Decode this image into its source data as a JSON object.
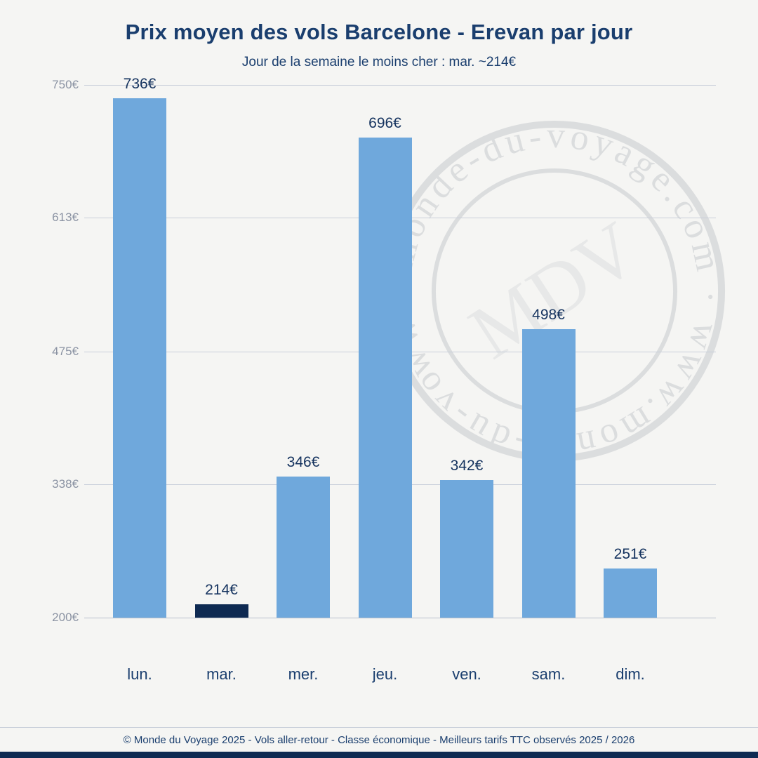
{
  "header": {
    "title": "Prix moyen des vols Barcelone - Erevan par jour",
    "subtitle": "Jour de la semaine le moins cher : mar. ~214€"
  },
  "watermark": {
    "ring_text": "www.monde-du-voyage.com · www.monde-du-voyage.com ·",
    "center_text": "MDV"
  },
  "footer": {
    "text": "© Monde du Voyage 2025 - Vols aller-retour - Classe économique - Meilleurs tarifs TTC observés 2025 / 2026"
  },
  "colors": {
    "bar": "#6fa8dc",
    "bar_highlight": "#0e2a52",
    "title": "#1a3e6e",
    "grid": "#c9cfda",
    "background": "#f5f5f3"
  },
  "chart_data": {
    "type": "bar",
    "title": "Prix moyen des vols Barcelone - Erevan par jour",
    "subtitle": "Jour de la semaine le moins cher : mar. ~214€",
    "categories": [
      "lun.",
      "mar.",
      "mer.",
      "jeu.",
      "ven.",
      "sam.",
      "dim."
    ],
    "values": [
      736,
      214,
      346,
      696,
      342,
      498,
      251
    ],
    "value_labels": [
      "736€",
      "214€",
      "346€",
      "696€",
      "342€",
      "498€",
      "251€"
    ],
    "highlight_index": 1,
    "highlight_meaning": "cheapest day",
    "ylim": [
      200,
      750
    ],
    "yticks": [
      750,
      613,
      475,
      338,
      200
    ],
    "ytick_labels": [
      "750€",
      "613€",
      "475€",
      "338€",
      "200€"
    ],
    "grid": true,
    "legend": false
  }
}
